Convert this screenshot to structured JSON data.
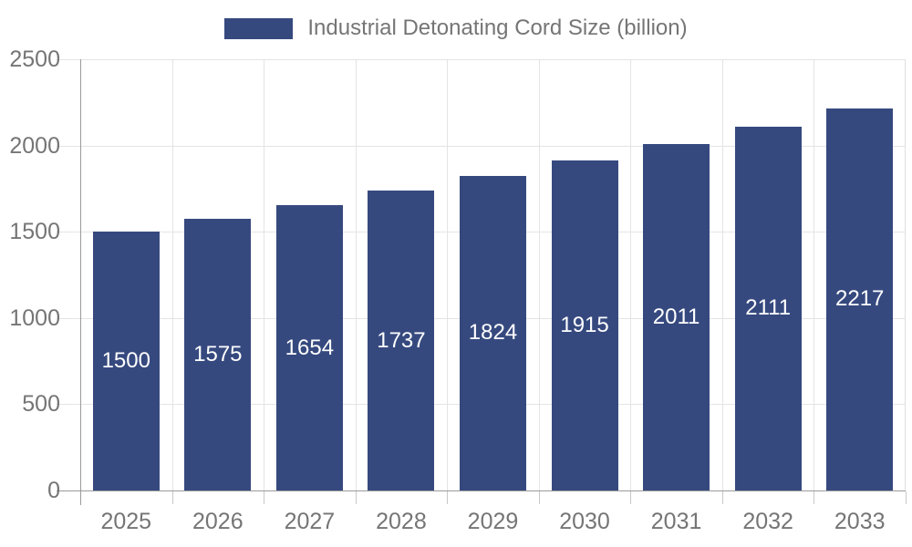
{
  "legend": {
    "label": "Industrial Detonating Cord Size (billion)"
  },
  "chart_data": {
    "type": "bar",
    "title": "Industrial Detonating Cord Size (billion)",
    "series_name": "Industrial Detonating Cord Size (billion)",
    "categories": [
      "2025",
      "2026",
      "2027",
      "2028",
      "2029",
      "2030",
      "2031",
      "2032",
      "2033"
    ],
    "values": [
      1500,
      1575,
      1654,
      1737,
      1824,
      1915,
      2011,
      2111,
      2217
    ],
    "data_labels": [
      "1500",
      "1575",
      "1654",
      "1737",
      "1824",
      "1915",
      "2011",
      "2111",
      "2217"
    ],
    "xlabel": "",
    "ylabel": "",
    "ylim": [
      0,
      2500
    ],
    "yticks": [
      0,
      500,
      1000,
      1500,
      2000,
      2500
    ],
    "ytick_labels": [
      "0",
      "500",
      "1000",
      "1500",
      "2000",
      "2500"
    ],
    "grid": true,
    "legend_position": "top",
    "colors": {
      "bar_fill": "#36497F",
      "bar_value_text": "#FFFFFF",
      "axis_text": "#757575",
      "legend_text": "#757575",
      "gridline": "#E4E4E4",
      "axis_line": "#9A9A9A",
      "tick_mark": "#C8C8C8",
      "plot_border": "#E0E0E0",
      "background": "#FFFFFF"
    }
  }
}
